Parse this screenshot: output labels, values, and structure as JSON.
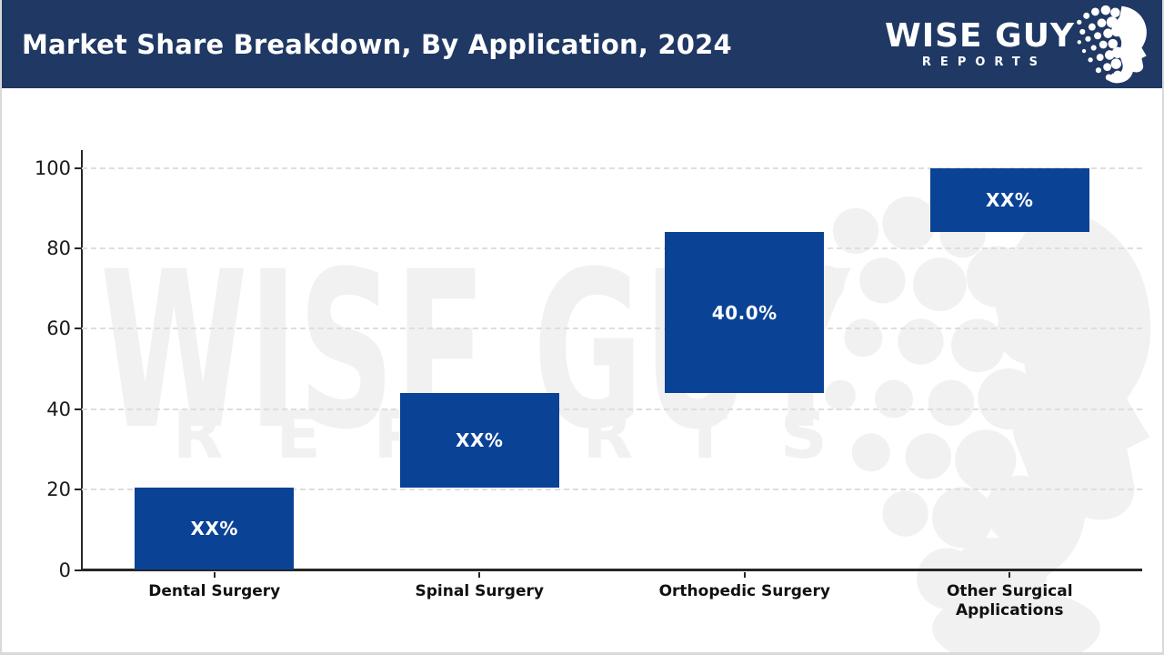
{
  "header": {
    "title": "Market Share Breakdown, By Application, 2024",
    "logo": {
      "line1": "WISE GUY",
      "line2": "REPORTS"
    }
  },
  "watermark": {
    "line1": "WISE GUY",
    "line2": "REPORTS"
  },
  "colors": {
    "header_bg": "#1f3864",
    "bar_blue": "#0a4296",
    "bar_label_text": "#ffffff",
    "grid_gray": "#dedede",
    "axis_black": "#262626",
    "watermark_gray": "#f1f1f1",
    "card_border": "#d9d9d9"
  },
  "chart_data": {
    "type": "bar",
    "subtype": "floating-segment-waterfall",
    "title": "Market Share Breakdown, By Application, 2024",
    "categories": [
      "Dental Surgery",
      "Spinal Surgery",
      "Orthopedic Surgery",
      "Other Surgical Applications"
    ],
    "category_label_lines": [
      [
        "Dental Surgery"
      ],
      [
        "Spinal Surgery"
      ],
      [
        "Orthopedic Surgery"
      ],
      [
        "Other Surgical",
        "Applications"
      ]
    ],
    "segments": [
      {
        "category": "Dental Surgery",
        "start": 0,
        "end": 20.5,
        "label": "XX%"
      },
      {
        "category": "Spinal Surgery",
        "start": 20.5,
        "end": 44,
        "label": "XX%"
      },
      {
        "category": "Orthopedic Surgery",
        "start": 44,
        "end": 84,
        "label": "40.0%"
      },
      {
        "category": "Other Surgical Applications",
        "start": 84,
        "end": 100,
        "label": "XX%"
      }
    ],
    "xlabel": "",
    "ylabel": "",
    "yticks": [
      0,
      20,
      40,
      60,
      80,
      100
    ],
    "ylim": [
      0,
      104.5
    ],
    "grid": "horizontal-dashed",
    "legend": "none",
    "bar_color": "#0a4296"
  }
}
